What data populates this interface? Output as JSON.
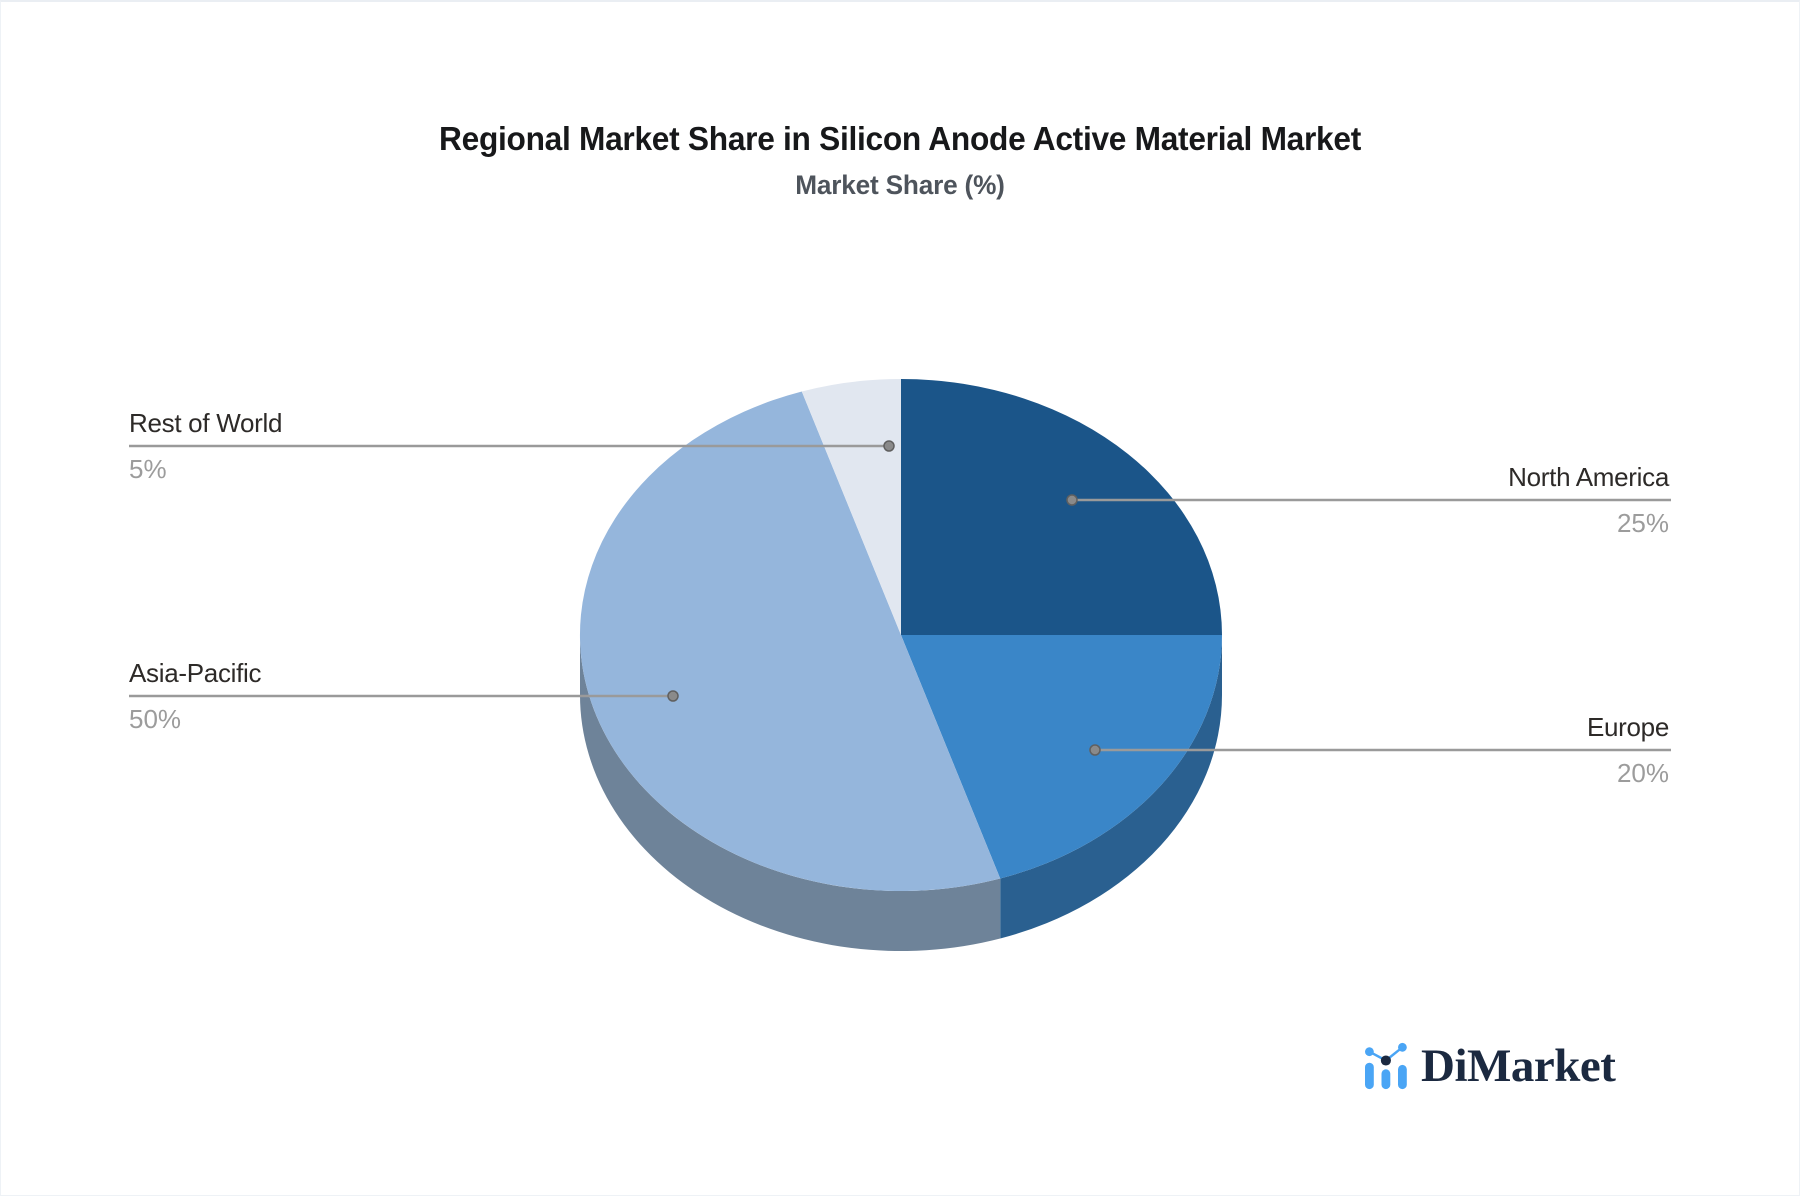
{
  "chart_data": {
    "type": "pie",
    "style": "3d-pie",
    "title": "Regional Market Share in Silicon Anode Active Material Market",
    "subtitle": "Market Share (%)",
    "unit": "%",
    "start_angle_deg": 0,
    "direction": "clockwise",
    "legend_position": "callout-labels",
    "slices": [
      {
        "label": "North America",
        "value": 25,
        "pct_label": "25%",
        "color": "#1b5589",
        "side_color": "#174872",
        "callout_side": "right"
      },
      {
        "label": "Europe",
        "value": 20,
        "pct_label": "20%",
        "color": "#3a86c8",
        "side_color": "#2a6090",
        "callout_side": "right"
      },
      {
        "label": "Asia-Pacific",
        "value": 50,
        "pct_label": "50%",
        "color": "#95b6dc",
        "side_color": "#6e8399",
        "callout_side": "left"
      },
      {
        "label": "Rest of World",
        "value": 5,
        "pct_label": "5%",
        "color": "#e1e7f0",
        "side_color": "#c2cad6",
        "callout_side": "left"
      }
    ]
  },
  "logo": {
    "text": "DiMarket",
    "icon": "bar-line-chart-icon",
    "icon_color": "#4aa5f5",
    "text_color": "#1b2940"
  }
}
